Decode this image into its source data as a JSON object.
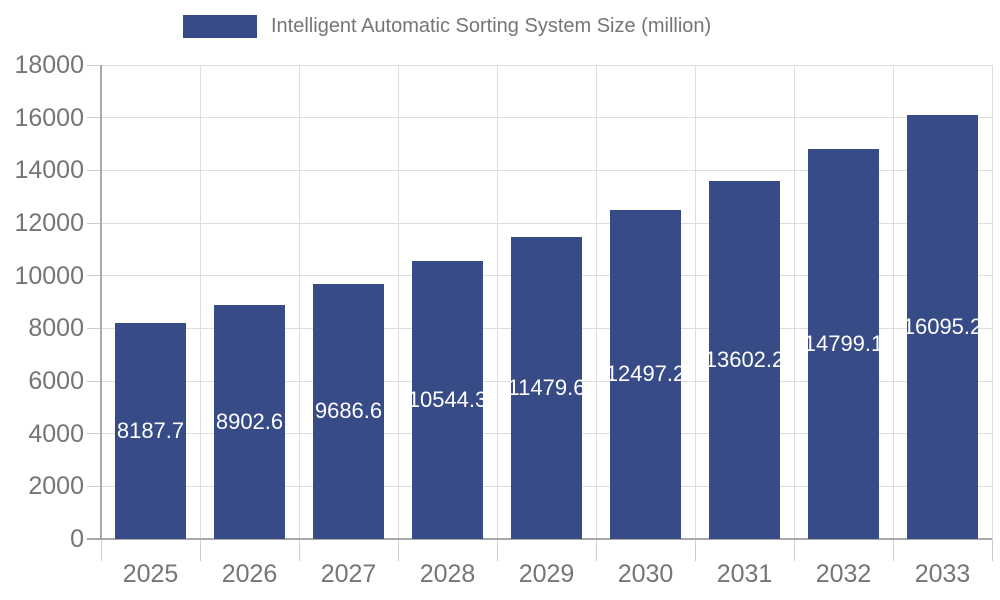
{
  "legend": {
    "label": "Intelligent Automatic Sorting System Size (million)"
  },
  "chart_data": {
    "type": "bar",
    "title": "Intelligent Automatic Sorting System Size (million)",
    "categories": [
      "2025",
      "2026",
      "2027",
      "2028",
      "2029",
      "2030",
      "2031",
      "2032",
      "2033"
    ],
    "values": [
      8187.7,
      8902.6,
      9686.6,
      10544.3,
      11479.6,
      12497.2,
      13602.2,
      14799.1,
      16095.2
    ],
    "bar_labels": [
      "8187.7",
      "8902.6",
      "9686.6",
      "10544.3",
      "11479.6",
      "12497.2",
      "13602.2",
      "14799.1",
      "16095.2"
    ],
    "xlabel": "",
    "ylabel": "",
    "ylim": [
      0,
      18000
    ],
    "y_tick_step": 2000,
    "y_tick_labels": [
      "0",
      "2000",
      "4000",
      "6000",
      "8000",
      "10000",
      "12000",
      "14000",
      "16000",
      "18000"
    ],
    "grid": true,
    "legend_position": "top",
    "colors": {
      "bar": "#374B87",
      "bar_label_text": "#FFFFFF",
      "axis_text": "#757575",
      "gridline": "#DDDDDD",
      "axis_line": "#A8A8A8",
      "tick": "#CDCDCD",
      "background": "#FFFFFF"
    }
  }
}
